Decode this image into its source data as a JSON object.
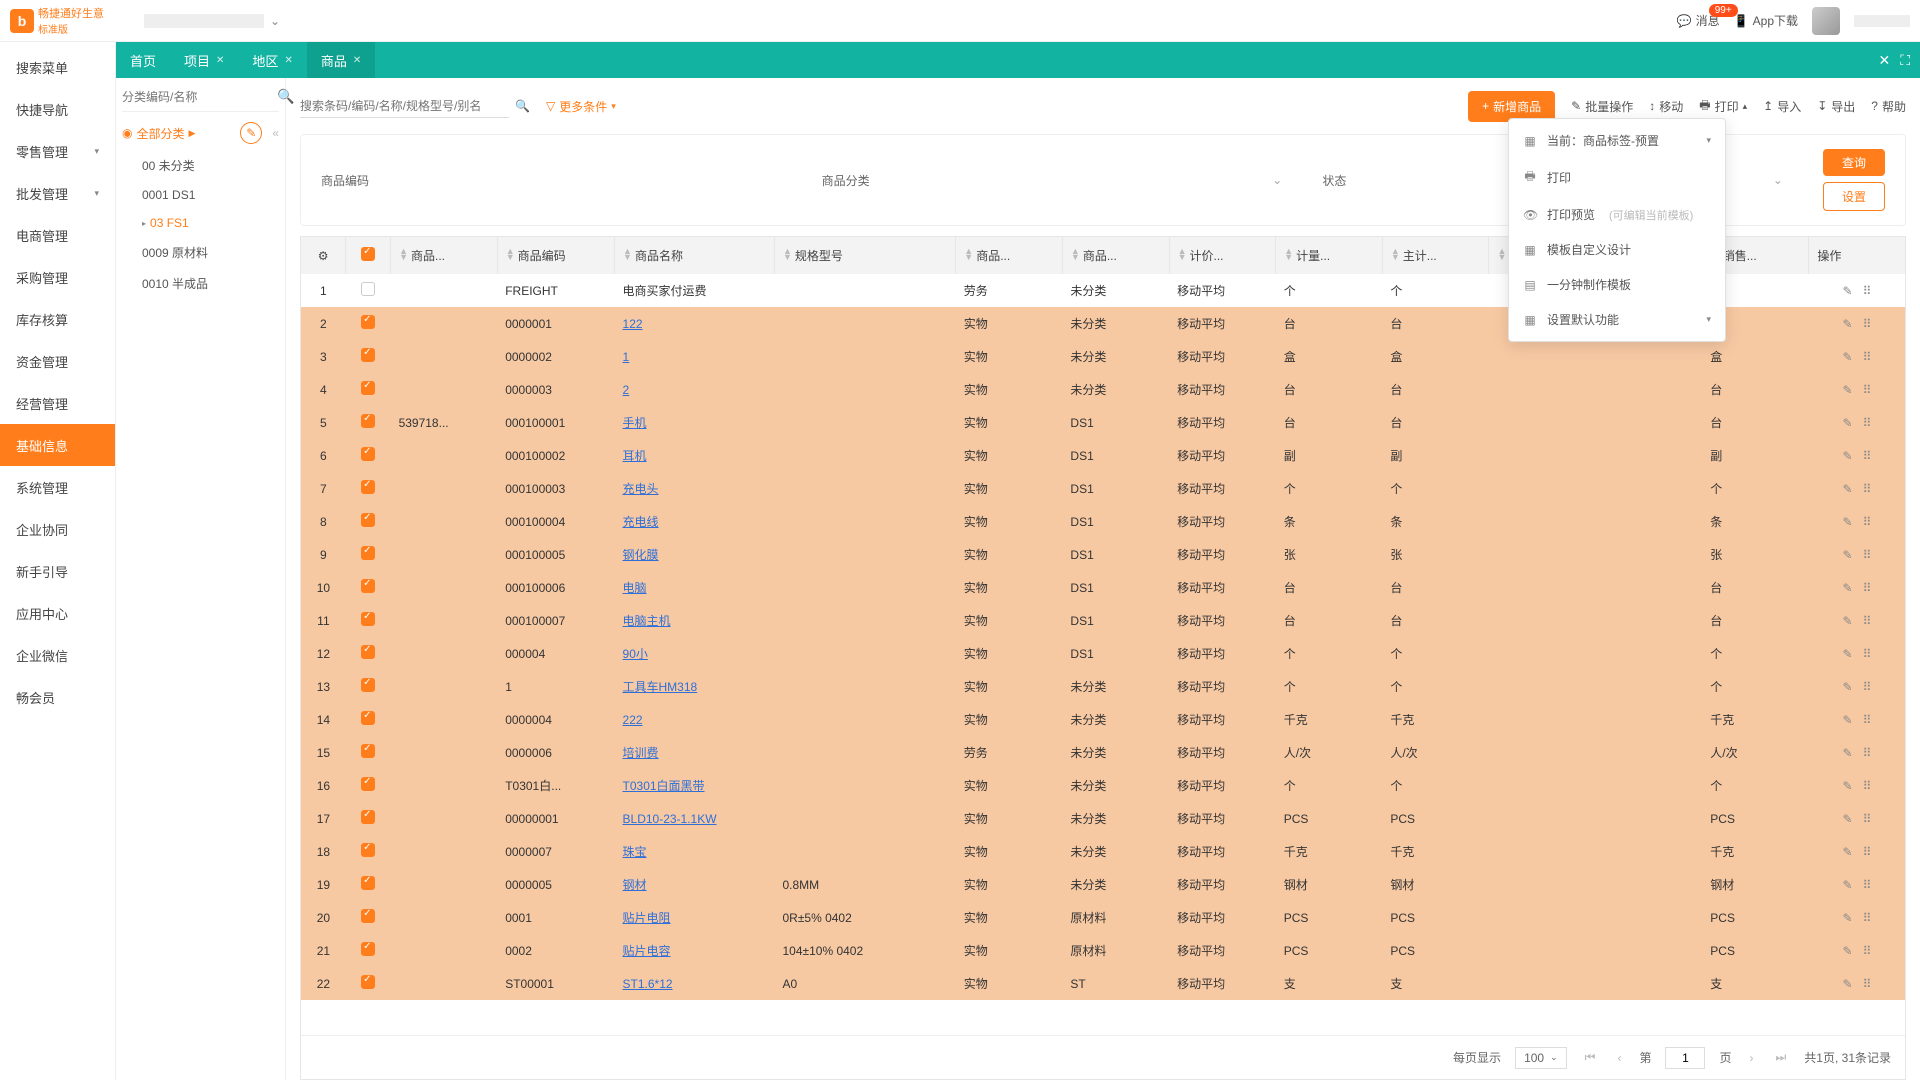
{
  "colors": {
    "accent": "#ff7d1a",
    "teal": "#12b3a1",
    "selRow": "#f7c9a3"
  },
  "header": {
    "brand": "畅捷通好生意",
    "edition": "标准版",
    "org_placeholder": " ",
    "msg": "消息",
    "msg_badge": "99+",
    "app_download": "App下载"
  },
  "tabs": [
    {
      "label": "首页",
      "closable": false
    },
    {
      "label": "项目",
      "closable": true
    },
    {
      "label": "地区",
      "closable": true
    },
    {
      "label": "商品",
      "closable": true,
      "active": true
    }
  ],
  "sidebar": [
    {
      "label": "搜索菜单"
    },
    {
      "label": "快捷导航"
    },
    {
      "label": "零售管理",
      "expand": true
    },
    {
      "label": "批发管理",
      "expand": true
    },
    {
      "label": "电商管理"
    },
    {
      "label": "采购管理"
    },
    {
      "label": "库存核算"
    },
    {
      "label": "资金管理"
    },
    {
      "label": "经营管理"
    },
    {
      "label": "基础信息",
      "active": true
    },
    {
      "label": "系统管理"
    },
    {
      "label": "企业协同"
    },
    {
      "label": "新手引导"
    },
    {
      "label": "应用中心"
    },
    {
      "label": "企业微信"
    },
    {
      "label": "畅会员"
    }
  ],
  "catPanel": {
    "search_placeholder": "分类编码/名称",
    "all_label": "全部分类",
    "items": [
      {
        "label": "00 未分类"
      },
      {
        "label": "0001 DS1"
      },
      {
        "label": "03 FS1",
        "expandable": true,
        "selected": true
      },
      {
        "label": "0009 原材料"
      },
      {
        "label": "0010 半成品"
      }
    ]
  },
  "toolbar": {
    "search_placeholder": "搜索条码/编码/名称/规格型号/别名",
    "more_cond": "更多条件",
    "add_btn": "新增商品",
    "batch": "批量操作",
    "move": "移动",
    "print": "打印",
    "import": "导入",
    "export": "导出",
    "help": "帮助"
  },
  "filters": {
    "code_label": "商品编码",
    "class_label": "商品分类",
    "status_label": "状态",
    "query_btn": "查询",
    "set_btn": "设置"
  },
  "printMenu": {
    "current_prefix": "当前：",
    "current_value": "商品标签-预置",
    "print": "打印",
    "preview": "打印预览",
    "preview_hint": "(可编辑当前模板)",
    "custom": "模板自定义设计",
    "one_min": "一分钟制作模板",
    "set_default": "设置默认功能"
  },
  "columns": [
    "商品...",
    "商品编码",
    "商品名称",
    "规格型号",
    "商品...",
    "商品...",
    "计价...",
    "计量...",
    "主计...",
    "",
    "销售...",
    "操作"
  ],
  "rows": [
    {
      "n": 1,
      "sel": false,
      "barcode": "",
      "code": "FREIGHT",
      "name": "电商买家付运费",
      "link": false,
      "spec": "",
      "type": "劳务",
      "cls": "未分类",
      "price": "移动平均",
      "unit": "个",
      "main": "个",
      "sale": ""
    },
    {
      "n": 2,
      "sel": true,
      "barcode": "",
      "code": "0000001",
      "name": "122",
      "link": true,
      "spec": "",
      "type": "实物",
      "cls": "未分类",
      "price": "移动平均",
      "unit": "台",
      "main": "台",
      "sale": "台"
    },
    {
      "n": 3,
      "sel": true,
      "barcode": "",
      "code": "0000002",
      "name": "1",
      "link": true,
      "spec": "",
      "type": "实物",
      "cls": "未分类",
      "price": "移动平均",
      "unit": "盒",
      "main": "盒",
      "sale": "盒"
    },
    {
      "n": 4,
      "sel": true,
      "barcode": "",
      "code": "0000003",
      "name": "2",
      "link": true,
      "spec": "",
      "type": "实物",
      "cls": "未分类",
      "price": "移动平均",
      "unit": "台",
      "main": "台",
      "sale": "台"
    },
    {
      "n": 5,
      "sel": true,
      "barcode": "539718...",
      "code": "000100001",
      "name": "手机",
      "link": true,
      "spec": "",
      "type": "实物",
      "cls": "DS1",
      "price": "移动平均",
      "unit": "台",
      "main": "台",
      "sale": "台"
    },
    {
      "n": 6,
      "sel": true,
      "barcode": "",
      "code": "000100002",
      "name": "耳机",
      "link": true,
      "spec": "",
      "type": "实物",
      "cls": "DS1",
      "price": "移动平均",
      "unit": "副",
      "main": "副",
      "sale": "副"
    },
    {
      "n": 7,
      "sel": true,
      "barcode": "",
      "code": "000100003",
      "name": "充电头",
      "link": true,
      "spec": "",
      "type": "实物",
      "cls": "DS1",
      "price": "移动平均",
      "unit": "个",
      "main": "个",
      "sale": "个"
    },
    {
      "n": 8,
      "sel": true,
      "barcode": "",
      "code": "000100004",
      "name": "充电线",
      "link": true,
      "spec": "",
      "type": "实物",
      "cls": "DS1",
      "price": "移动平均",
      "unit": "条",
      "main": "条",
      "sale": "条"
    },
    {
      "n": 9,
      "sel": true,
      "barcode": "",
      "code": "000100005",
      "name": "钢化膜",
      "link": true,
      "spec": "",
      "type": "实物",
      "cls": "DS1",
      "price": "移动平均",
      "unit": "张",
      "main": "张",
      "sale": "张"
    },
    {
      "n": 10,
      "sel": true,
      "barcode": "",
      "code": "000100006",
      "name": "电脑",
      "link": true,
      "spec": "",
      "type": "实物",
      "cls": "DS1",
      "price": "移动平均",
      "unit": "台",
      "main": "台",
      "sale": "台"
    },
    {
      "n": 11,
      "sel": true,
      "barcode": "",
      "code": "000100007",
      "name": "电脑主机",
      "link": true,
      "spec": "",
      "type": "实物",
      "cls": "DS1",
      "price": "移动平均",
      "unit": "台",
      "main": "台",
      "sale": "台"
    },
    {
      "n": 12,
      "sel": true,
      "barcode": "",
      "code": "000004",
      "name": "90小",
      "link": true,
      "spec": "",
      "type": "实物",
      "cls": "DS1",
      "price": "移动平均",
      "unit": "个",
      "main": "个",
      "sale": "个"
    },
    {
      "n": 13,
      "sel": true,
      "barcode": "",
      "code": "1",
      "name": "工具车HM318",
      "link": true,
      "spec": "",
      "type": "实物",
      "cls": "未分类",
      "price": "移动平均",
      "unit": "个",
      "main": "个",
      "sale": "个"
    },
    {
      "n": 14,
      "sel": true,
      "barcode": "",
      "code": "0000004",
      "name": "222",
      "link": true,
      "spec": "",
      "type": "实物",
      "cls": "未分类",
      "price": "移动平均",
      "unit": "千克",
      "main": "千克",
      "sale": "千克"
    },
    {
      "n": 15,
      "sel": true,
      "barcode": "",
      "code": "0000006",
      "name": "培训费",
      "link": true,
      "spec": "",
      "type": "劳务",
      "cls": "未分类",
      "price": "移动平均",
      "unit": "人/次",
      "main": "人/次",
      "sale": "人/次"
    },
    {
      "n": 16,
      "sel": true,
      "barcode": "",
      "code": "T0301白...",
      "name": "T0301白面黑带",
      "link": true,
      "spec": "",
      "type": "实物",
      "cls": "未分类",
      "price": "移动平均",
      "unit": "个",
      "main": "个",
      "sale": "个"
    },
    {
      "n": 17,
      "sel": true,
      "barcode": "",
      "code": "00000001",
      "name": "BLD10-23-1.1KW",
      "link": true,
      "spec": "",
      "type": "实物",
      "cls": "未分类",
      "price": "移动平均",
      "unit": "PCS",
      "main": "PCS",
      "sale": "PCS"
    },
    {
      "n": 18,
      "sel": true,
      "barcode": "",
      "code": "0000007",
      "name": "珠宝",
      "link": true,
      "spec": "",
      "type": "实物",
      "cls": "未分类",
      "price": "移动平均",
      "unit": "千克",
      "main": "千克",
      "sale": "千克"
    },
    {
      "n": 19,
      "sel": true,
      "barcode": "",
      "code": "0000005",
      "name": "钢材",
      "link": true,
      "spec": "0.8MM",
      "type": "实物",
      "cls": "未分类",
      "price": "移动平均",
      "unit": "钢材",
      "main": "钢材",
      "sale": "钢材"
    },
    {
      "n": 20,
      "sel": true,
      "barcode": "",
      "code": "0001",
      "name": "贴片电阻",
      "link": true,
      "spec": "0R±5% 0402",
      "type": "实物",
      "cls": "原材料",
      "price": "移动平均",
      "unit": "PCS",
      "main": "PCS",
      "sale": "PCS"
    },
    {
      "n": 21,
      "sel": true,
      "barcode": "",
      "code": "0002",
      "name": "贴片电容",
      "link": true,
      "spec": "104±10% 0402",
      "type": "实物",
      "cls": "原材料",
      "price": "移动平均",
      "unit": "PCS",
      "main": "PCS",
      "sale": "PCS"
    },
    {
      "n": 22,
      "sel": true,
      "barcode": "",
      "code": "ST00001",
      "name": "ST1.6*12",
      "link": true,
      "spec": "A0",
      "type": "实物",
      "cls": "ST",
      "price": "移动平均",
      "unit": "支",
      "main": "支",
      "sale": "支"
    }
  ],
  "pager": {
    "per_page_label": "每页显示",
    "per_page_value": "100",
    "page_label_pre": "第",
    "page_value": "1",
    "page_label_post": "页",
    "summary": "共1页, 31条记录"
  }
}
